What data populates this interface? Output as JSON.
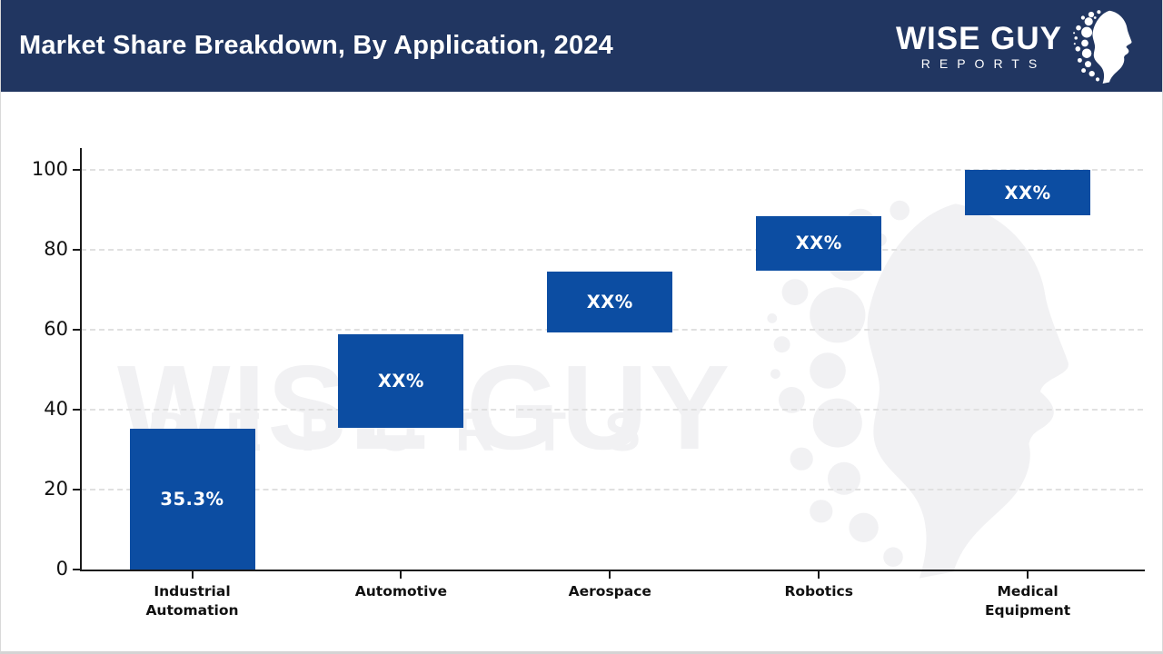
{
  "header": {
    "title": "Market Share Breakdown, By Application, 2024",
    "logo": {
      "line1": "WISE GUY",
      "line2": "REPORTS"
    },
    "bg_color": "#213661"
  },
  "watermark": {
    "line1": "WISE GUY",
    "line2": "REPORTS"
  },
  "chart_data": {
    "type": "bar",
    "subtype": "waterfall",
    "title": "Market Share Breakdown, By Application, 2024",
    "xlabel": "",
    "ylabel": "",
    "categories": [
      "Industrial Automation",
      "Automotive",
      "Aerospace",
      "Robotics",
      "Medical Equipment"
    ],
    "segments": [
      {
        "category": "Industrial Automation",
        "base": 0,
        "top": 35.3,
        "label": "35.3%"
      },
      {
        "category": "Automotive",
        "base": 35.5,
        "top": 58.9,
        "label": "XX%"
      },
      {
        "category": "Aerospace",
        "base": 59.3,
        "top": 74.5,
        "label": "XX%"
      },
      {
        "category": "Robotics",
        "base": 74.8,
        "top": 88.4,
        "label": "XX%"
      },
      {
        "category": "Medical Equipment",
        "base": 88.6,
        "top": 100,
        "label": "XX%"
      }
    ],
    "y_ticks": [
      0,
      20,
      40,
      60,
      80,
      100
    ],
    "ylim": [
      0,
      105
    ],
    "grid": "horizontal-dashed",
    "legend": "none",
    "bar_color": "#0c4da2",
    "bar_label_color": "#ffffff",
    "axis_color": "#1a1a1a",
    "gridline_color": "#e0e0e0"
  }
}
